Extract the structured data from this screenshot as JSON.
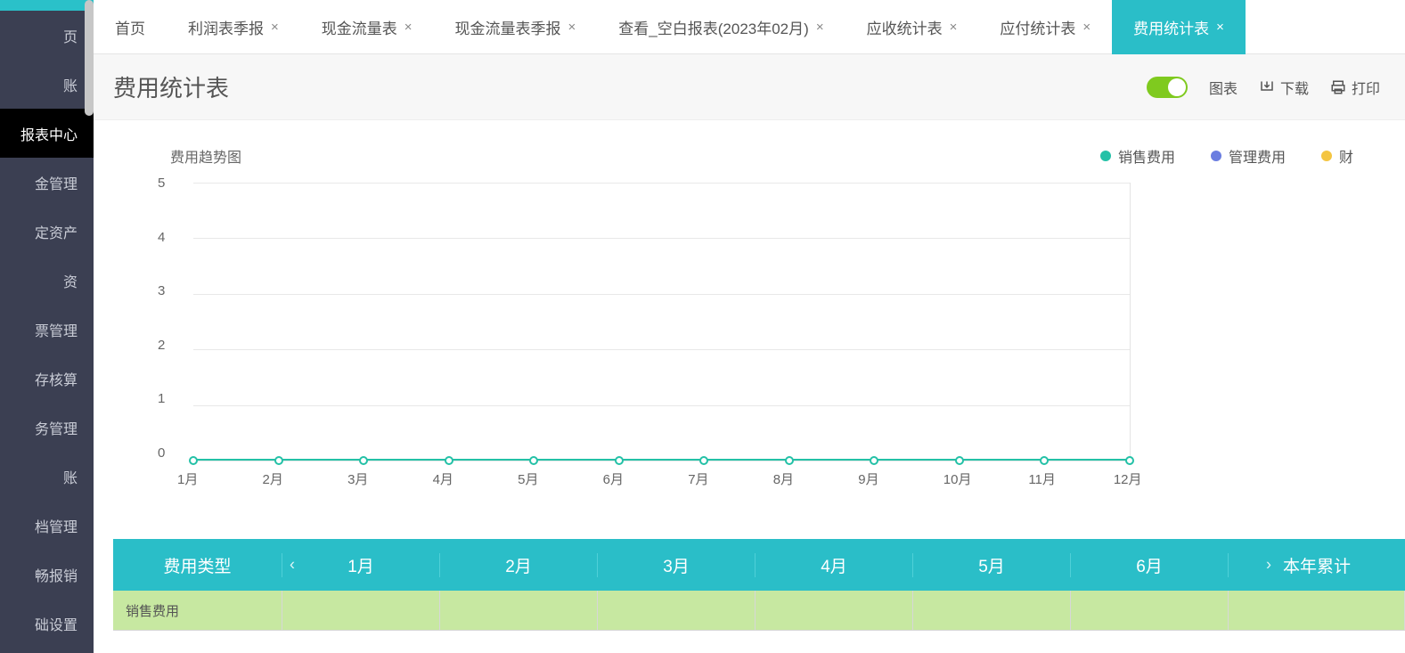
{
  "sidebar": {
    "items": [
      {
        "label": "页"
      },
      {
        "label": "账"
      },
      {
        "label": "报表中心",
        "active": true
      },
      {
        "label": "金管理"
      },
      {
        "label": "定资产"
      },
      {
        "label": "资"
      },
      {
        "label": "票管理"
      },
      {
        "label": "存核算"
      },
      {
        "label": "务管理"
      },
      {
        "label": "账"
      },
      {
        "label": "档管理"
      },
      {
        "label": "畅报销"
      },
      {
        "label": "础设置"
      }
    ]
  },
  "tabs": [
    {
      "label": "首页",
      "closable": false
    },
    {
      "label": "利润表季报",
      "closable": true
    },
    {
      "label": "现金流量表",
      "closable": true
    },
    {
      "label": "现金流量表季报",
      "closable": true
    },
    {
      "label": "查看_空白报表(2023年02月)",
      "closable": true
    },
    {
      "label": "应收统计表",
      "closable": true
    },
    {
      "label": "应付统计表",
      "closable": true
    },
    {
      "label": "费用统计表",
      "closable": true,
      "active": true
    }
  ],
  "header": {
    "title": "费用统计表",
    "toggle_label": "图表",
    "download_label": "下载",
    "print_label": "打印"
  },
  "chart": {
    "title": "费用趋势图",
    "type": "line",
    "legend": [
      {
        "name": "销售费用",
        "color": "#24c1a7"
      },
      {
        "name": "管理费用",
        "color": "#6a7de0"
      },
      {
        "name": "财",
        "color": "#f4c542"
      }
    ],
    "ylim": [
      0,
      5
    ],
    "ytick_step": 1,
    "x_labels": [
      "1月",
      "2月",
      "3月",
      "4月",
      "5月",
      "6月",
      "7月",
      "8月",
      "9月",
      "10月",
      "11月",
      "12月"
    ],
    "series": {
      "销售费用": [
        0,
        0,
        0,
        0,
        0,
        0,
        0,
        0,
        0,
        0,
        0,
        0
      ]
    },
    "grid_color": "#e8e8e8",
    "line_color": "#24c1a7",
    "marker_border": "#24c1a7",
    "marker_fill": "#ffffff"
  },
  "table": {
    "header_bg": "#2abec8",
    "header_first": "费用类型",
    "months": [
      "1月",
      "2月",
      "3月",
      "4月",
      "5月",
      "6月"
    ],
    "total_label": "本年累计",
    "rows": [
      {
        "label": "销售费用",
        "highlight": true,
        "values": [
          "",
          "",
          "",
          "",
          "",
          ""
        ],
        "total": ""
      }
    ],
    "row_highlight_bg": "#c7e8a1"
  }
}
